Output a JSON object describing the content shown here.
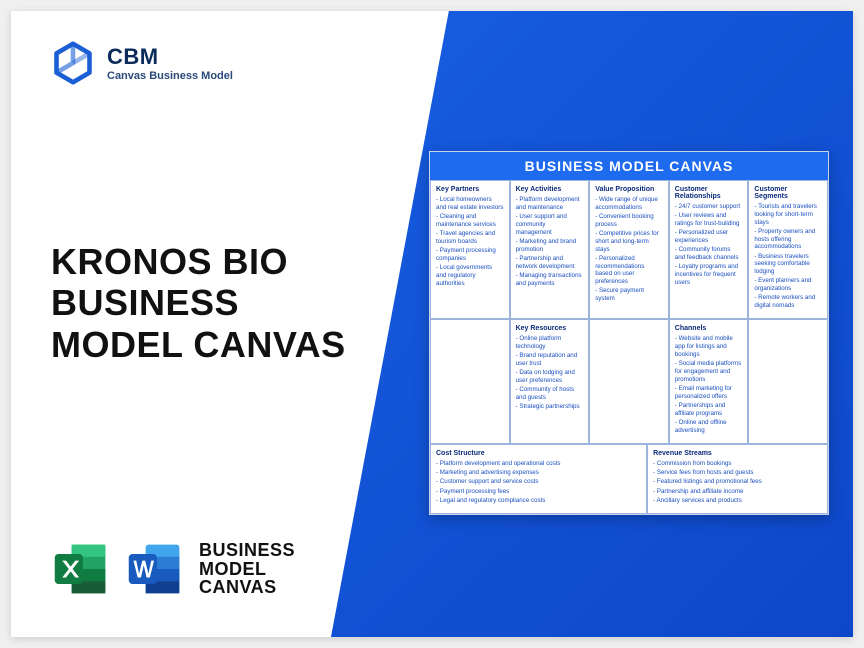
{
  "brand": {
    "abbr": "CBM",
    "sub": "Canvas Business Model"
  },
  "heading": "KRONOS BIO BUSINESS MODEL CANVAS",
  "bottom_label": "BUSINESS\nMODEL\nCANVAS",
  "canvas": {
    "banner": "BUSINESS MODEL CANVAS",
    "colors": {
      "accent": "#1f6bf0",
      "border": "#9db4dc",
      "text": "#1a4fc0",
      "heading": "#0b2b7a"
    },
    "top": [
      {
        "title": "Key Partners",
        "items": [
          "Local homeowners and real estate investors",
          "Cleaning and maintenance services",
          "Travel agencies and tourism boards",
          "Payment processing companies",
          "Local governments and regulatory authorities"
        ]
      },
      {
        "title": "Key Activities",
        "items": [
          "Platform development and maintenance",
          "User support and community management",
          "Marketing and brand promotion",
          "Partnership and network development",
          "Managing transactions and payments"
        ]
      },
      {
        "title": "Value Proposition",
        "items": [
          "Wide range of unique accommodations",
          "Convenient booking process",
          "Competitive prices for short and long-term stays",
          "Personalized recommendations based on user preferences",
          "Secure payment system"
        ]
      },
      {
        "title": "Customer Relationships",
        "items": [
          "24/7 customer support",
          "User reviews and ratings for trust-building",
          "Personalized user experiences",
          "Community forums and feedback channels",
          "Loyalty programs and incentives for frequent users"
        ]
      },
      {
        "title": "Customer Segments",
        "items": [
          "Tourists and travelers looking for short-term stays",
          "Property owners and hosts offering accommodations",
          "Business travelers seeking comfortable lodging",
          "Event planners and organizations",
          "Remote workers and digital nomads"
        ]
      }
    ],
    "mid": {
      "keyResources": {
        "title": "Key Resources",
        "items": [
          "Online platform technology",
          "Brand reputation and user trust",
          "Data on lodging and user preferences",
          "Community of hosts and guests",
          "Strategic partnerships"
        ]
      },
      "channels": {
        "title": "Channels",
        "items": [
          "Website and mobile app for listings and bookings",
          "Social media platforms for engagement and promotions",
          "Email marketing for personalized offers",
          "Partnerships and affiliate programs",
          "Online and offline advertising"
        ]
      }
    },
    "bottom": {
      "cost": {
        "title": "Cost Structure",
        "items": [
          "Platform development and operational costs",
          "Marketing and advertising expenses",
          "Customer support and service costs",
          "Payment processing fees",
          "Legal and regulatory compliance costs"
        ]
      },
      "revenue": {
        "title": "Revenue Streams",
        "items": [
          "Commission from bookings",
          "Service fees from hosts and guests",
          "Featured listings and promotional fees",
          "Partnership and affiliate income",
          "Ancillary services and products"
        ]
      }
    }
  }
}
